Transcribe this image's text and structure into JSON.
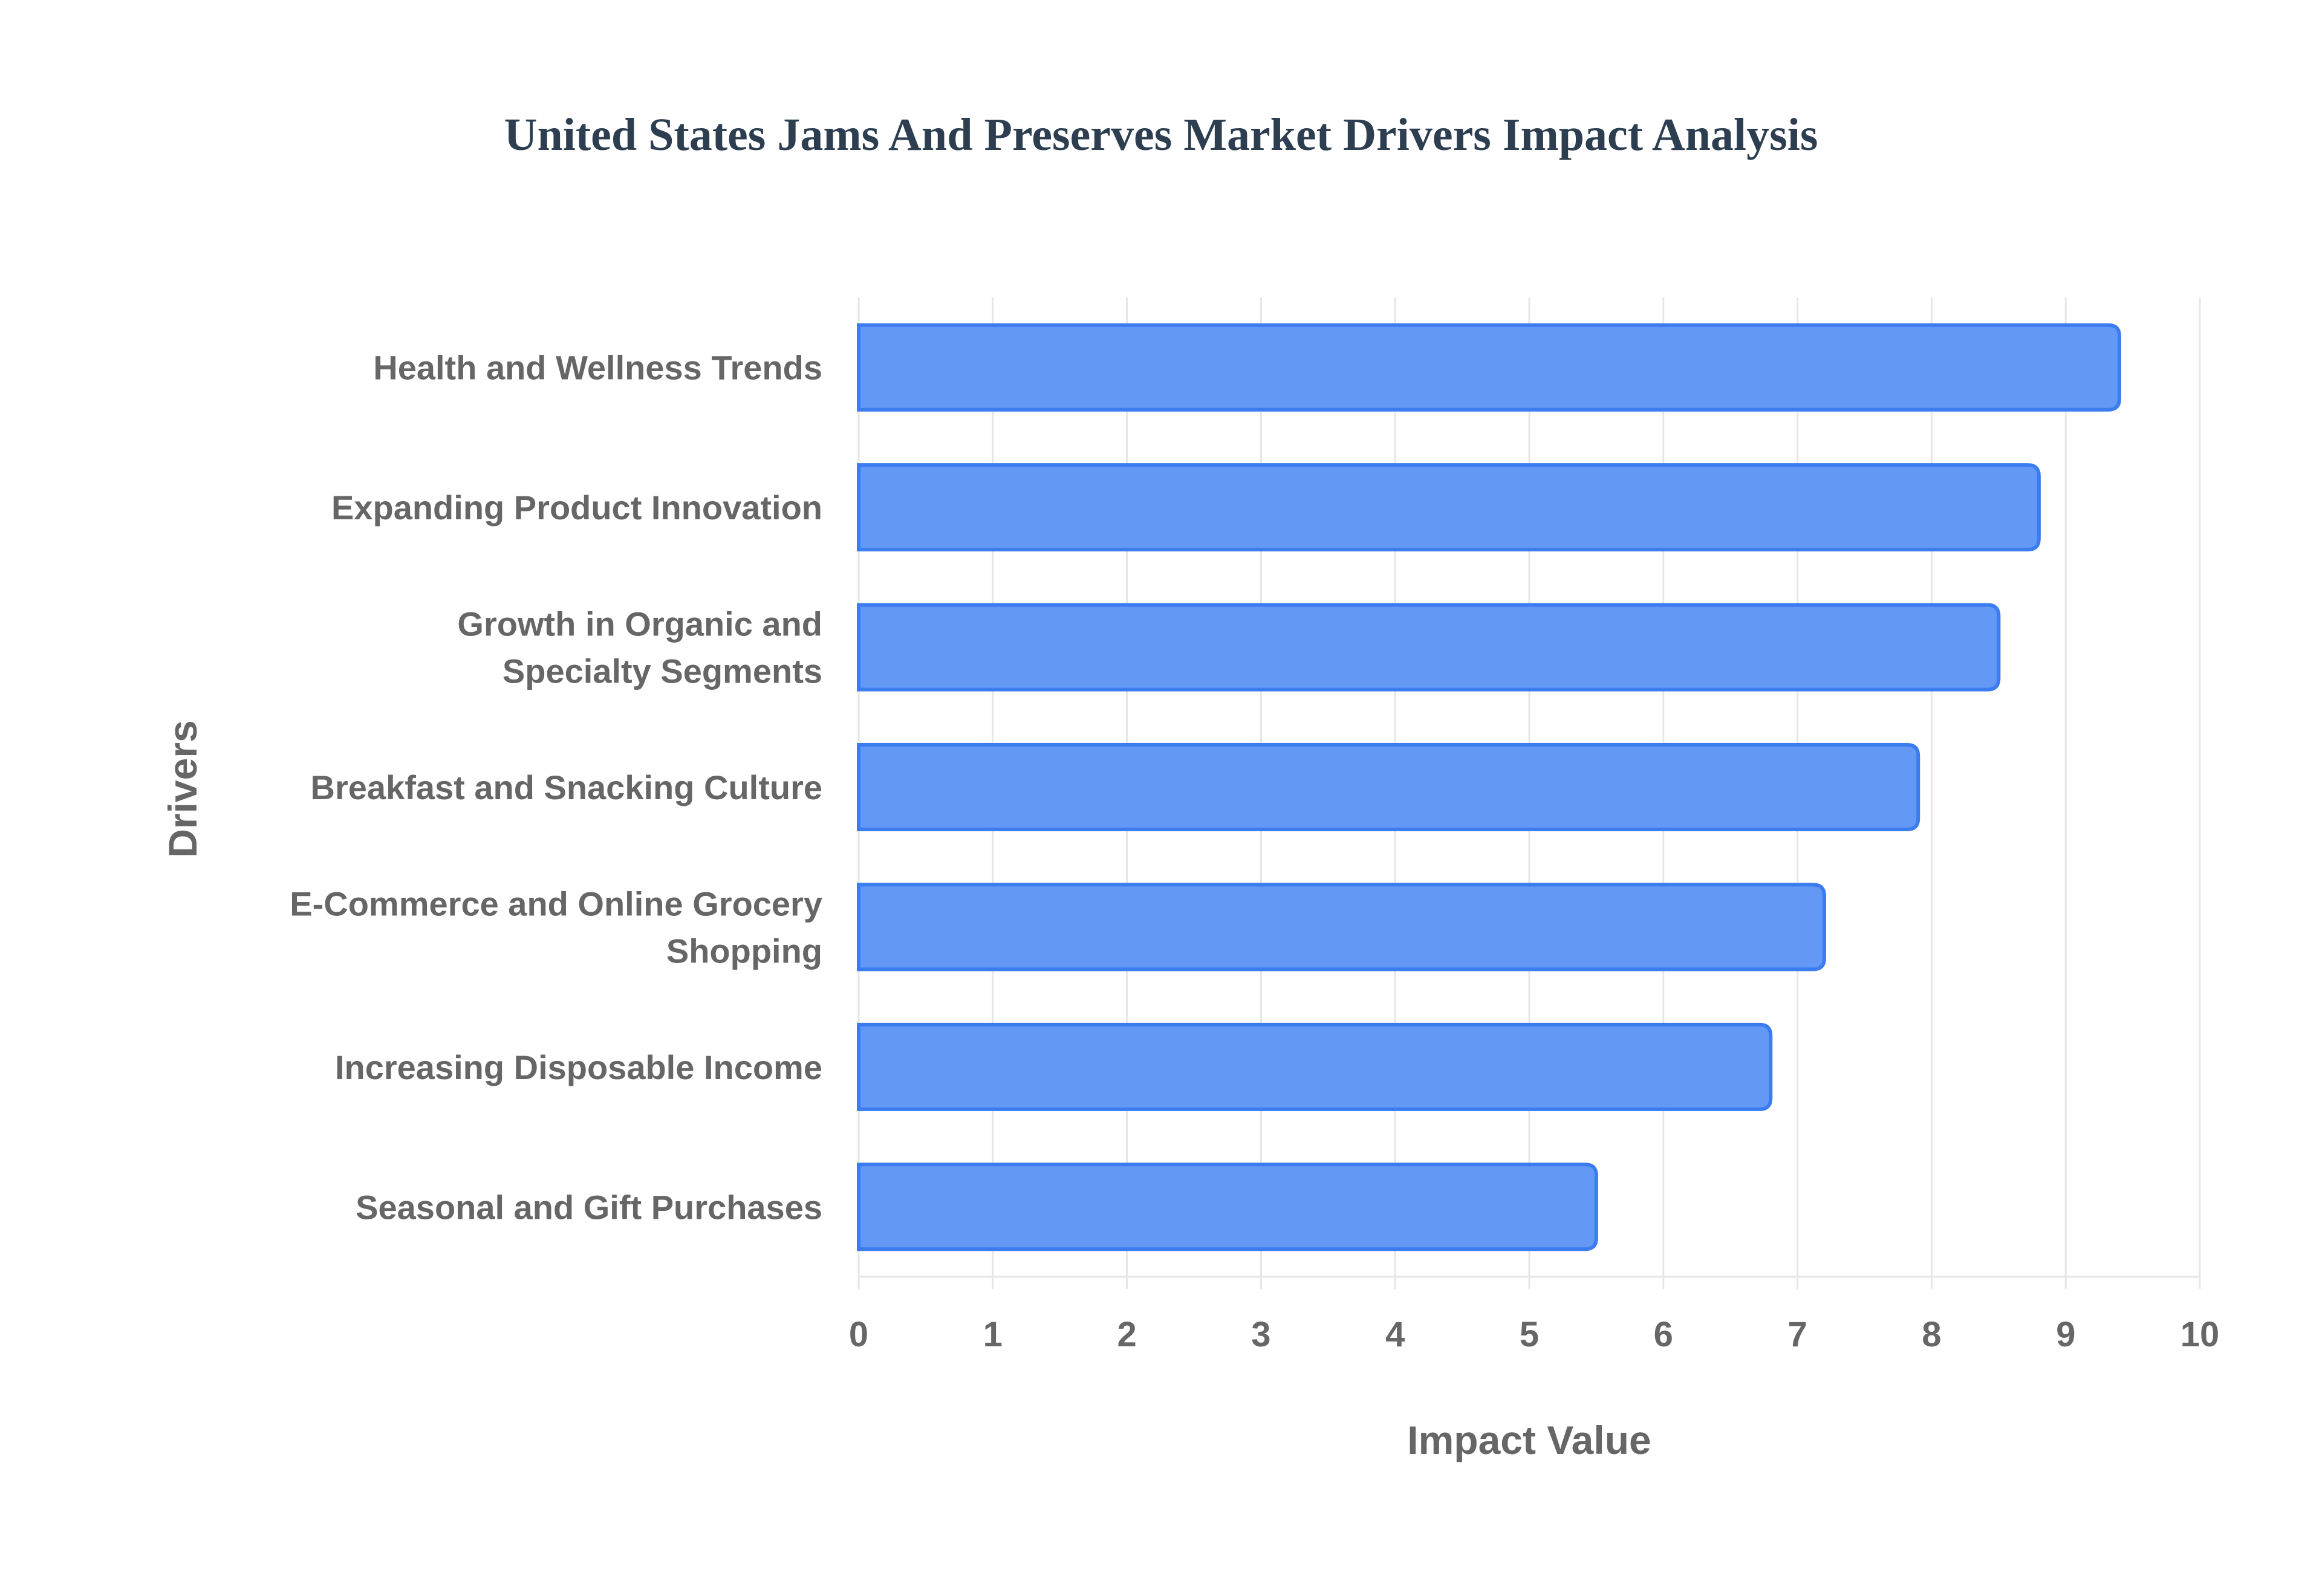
{
  "chart_data": {
    "type": "bar",
    "orientation": "horizontal",
    "title": "United States Jams And Preserves Market Drivers Impact Analysis",
    "xlabel": "Impact Value",
    "ylabel": "Drivers",
    "categories": [
      [
        "Health and Wellness Trends"
      ],
      [
        "Expanding Product Innovation"
      ],
      [
        "Growth in Organic and",
        "Specialty Segments"
      ],
      [
        "Breakfast and Snacking Culture"
      ],
      [
        "E-Commerce and Online Grocery",
        "Shopping"
      ],
      [
        "Increasing Disposable Income"
      ],
      [
        "Seasonal and Gift Purchases"
      ]
    ],
    "values": [
      9.4,
      8.8,
      8.5,
      7.9,
      7.2,
      6.8,
      5.5
    ],
    "xlim": [
      0,
      10
    ],
    "xticks": [
      "0",
      "1",
      "2",
      "3",
      "4",
      "5",
      "6",
      "7",
      "8",
      "9",
      "10"
    ],
    "grid": true,
    "legend": "none",
    "colors": {
      "bar_fill": "#6399f5",
      "bar_stroke": "#3b7cf0",
      "grid": "#e6e6e6",
      "text": "#666666",
      "title": "#2c3e50"
    }
  }
}
